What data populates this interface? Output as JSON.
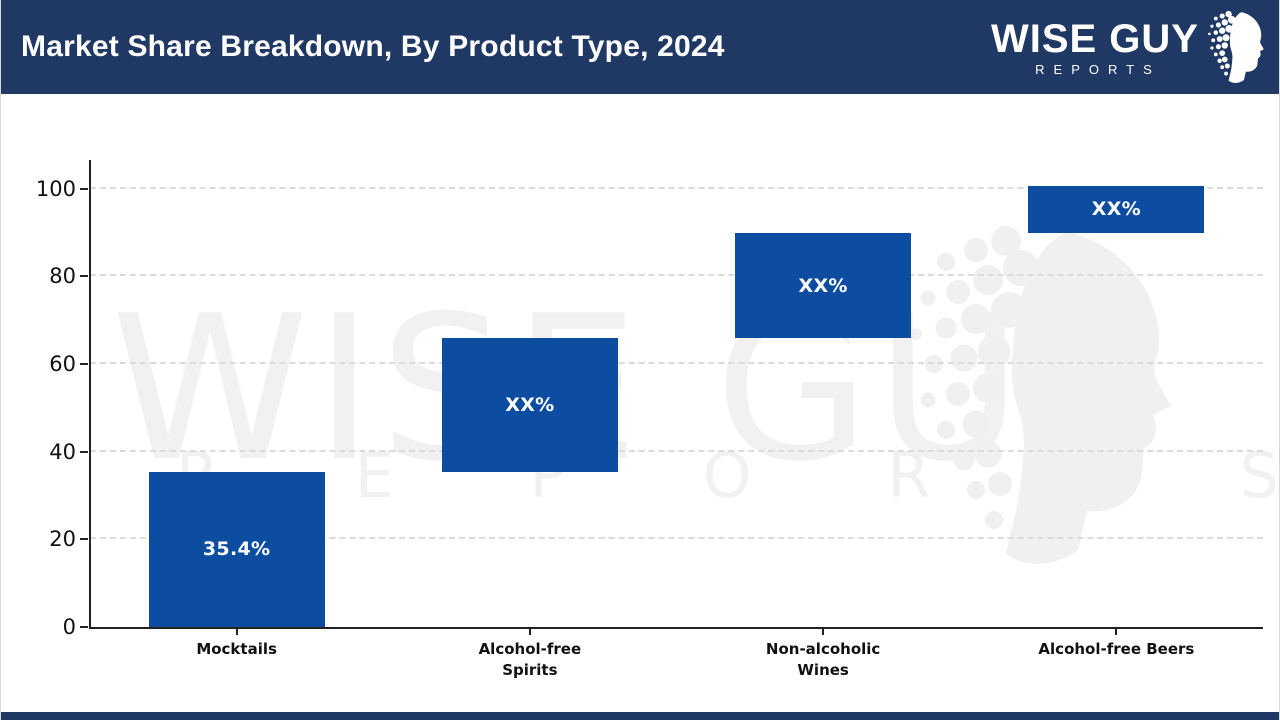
{
  "colors": {
    "header_bg": "#1f3864",
    "bar_blue": "#0c4da2",
    "grid_gray": "#dbdbdb",
    "watermark_gray": "#f1f1f1"
  },
  "header": {
    "title": "Market Share Breakdown, By Product Type, 2024",
    "logo": {
      "line1": "WISE GUY",
      "line2": "REPORTS"
    }
  },
  "watermark": {
    "line1": "WISE GUY",
    "line2": "R E P O R T S"
  },
  "chart_data": {
    "type": "bar",
    "variant": "waterfall (floating stacked segments)",
    "title": "Market Share Breakdown, By Product Type, 2024",
    "categories": [
      "Mocktails",
      "Alcohol-free\nSpirits",
      "Non-alcoholic\nWines",
      "Alcohol-free Beers"
    ],
    "segments": [
      {
        "category": "Mocktails",
        "label": "35.4%",
        "start": 0,
        "end": 35.4
      },
      {
        "category": "Alcohol-free Spirits",
        "label": "XX%",
        "start": 35.4,
        "end": 65.8
      },
      {
        "category": "Non-alcoholic Wines",
        "label": "XX%",
        "start": 65.8,
        "end": 89.9
      },
      {
        "category": "Alcohol-free Beers",
        "label": "XX%",
        "start": 89.9,
        "end": 100.6
      }
    ],
    "xlabel": "",
    "ylabel": "",
    "yticks": [
      0,
      20,
      40,
      60,
      80,
      100
    ],
    "ylim": [
      0,
      106.5
    ],
    "grid": "horizontal dashed",
    "legend": "none",
    "bar_color": "#0c4da2",
    "label_color": "#ffffff"
  }
}
